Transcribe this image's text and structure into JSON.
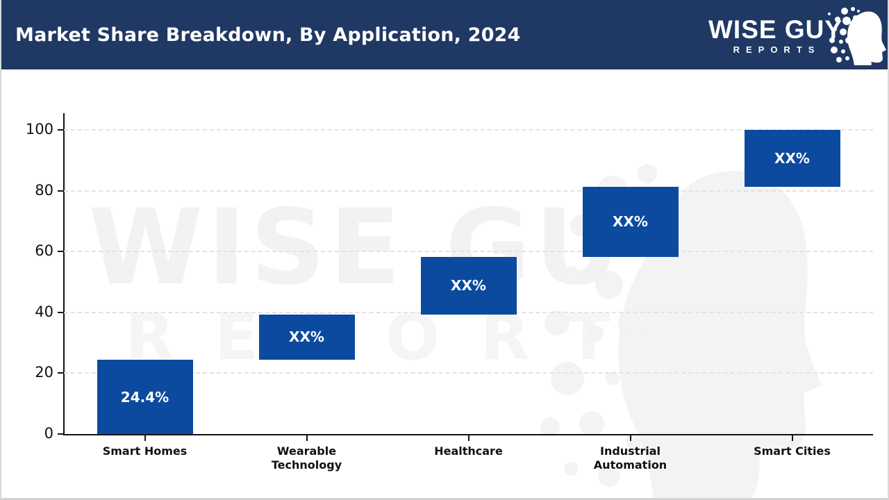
{
  "header": {
    "title": "Market Share Breakdown, By Application, 2024",
    "bg_color": "#1f3864",
    "logo": {
      "primary": "WISE GUY",
      "secondary": "REPORTS",
      "icon": "dotted-face-profile"
    }
  },
  "watermark": {
    "line1": "WISE GUY",
    "line2": "REPORTS"
  },
  "footer": {
    "border_color": "#d4d4d4"
  },
  "chart_data": {
    "type": "bar",
    "subtype": "floating-waterfall",
    "title": "Market Share Breakdown, By Application, 2024",
    "xlabel": "",
    "ylabel": "",
    "ylim": [
      0,
      105
    ],
    "yticks": [
      0,
      20,
      40,
      60,
      80,
      100
    ],
    "grid": "horizontal-dashed",
    "legend": "none",
    "bar_color": "#0b4a9f",
    "bar_label_color": "#ffffff",
    "categories": [
      "Smart Homes",
      "Wearable Technology",
      "Healthcare",
      "Industrial Automation",
      "Smart Cities"
    ],
    "category_label_lines": [
      [
        "Smart Homes"
      ],
      [
        "Wearable",
        "Technology"
      ],
      [
        "Healthcare"
      ],
      [
        "Industrial",
        "Automation"
      ],
      [
        "Smart Cities"
      ]
    ],
    "bars": [
      {
        "category": "Smart Homes",
        "start": 0,
        "end": 24.4,
        "label": "24.4%"
      },
      {
        "category": "Wearable Technology",
        "start": 24.4,
        "end": 39.3,
        "label": "XX%"
      },
      {
        "category": "Healthcare",
        "start": 39.3,
        "end": 58.2,
        "label": "XX%"
      },
      {
        "category": "Industrial Automation",
        "start": 58.2,
        "end": 81.3,
        "label": "XX%"
      },
      {
        "category": "Smart Cities",
        "start": 81.3,
        "end": 100,
        "label": "XX%"
      }
    ]
  }
}
